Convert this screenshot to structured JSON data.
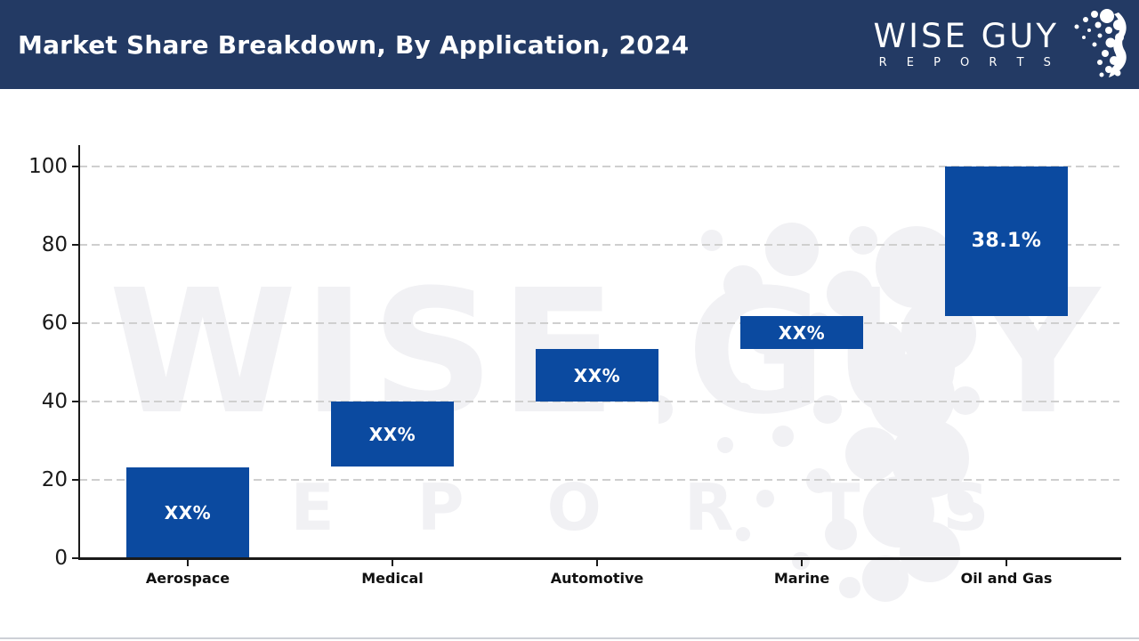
{
  "header": {
    "title": "Market Share Breakdown, By Application, 2024",
    "logo_line1": "WISE GUY",
    "logo_line2": "R E P O R T S"
  },
  "watermark": {
    "line1": "WISE GUY",
    "line2": "R E P O R T S"
  },
  "chart_data": {
    "type": "bar",
    "subtype": "waterfall-floating-bars",
    "title": "Market Share Breakdown, By Application, 2024",
    "categories": [
      "Aerospace",
      "Medical",
      "Automotive",
      "Marine",
      "Oil and Gas"
    ],
    "bars": [
      {
        "category": "Aerospace",
        "start": 0,
        "end": 23.2,
        "label": "XX%"
      },
      {
        "category": "Medical",
        "start": 23.3,
        "end": 40,
        "label": "XX%"
      },
      {
        "category": "Automotive",
        "start": 40,
        "end": 53.3,
        "label": "XX%"
      },
      {
        "category": "Marine",
        "start": 53.3,
        "end": 61.9,
        "label": "XX%"
      },
      {
        "category": "Oil and Gas",
        "start": 61.9,
        "end": 100,
        "label": "38.1%"
      }
    ],
    "yticks": [
      0,
      20,
      40,
      60,
      80,
      100
    ],
    "ylim": [
      0,
      105
    ],
    "xlabel": "",
    "ylabel": "",
    "grid": "horizontal-dashed",
    "legend": "none",
    "colors": {
      "bar": "#0b4aa0",
      "bar_label": "#ffffff",
      "header_bg": "#233a64",
      "axis": "#1a1a1a",
      "gridline": "#cfcfcf",
      "watermark": "#f1f1f4"
    }
  }
}
